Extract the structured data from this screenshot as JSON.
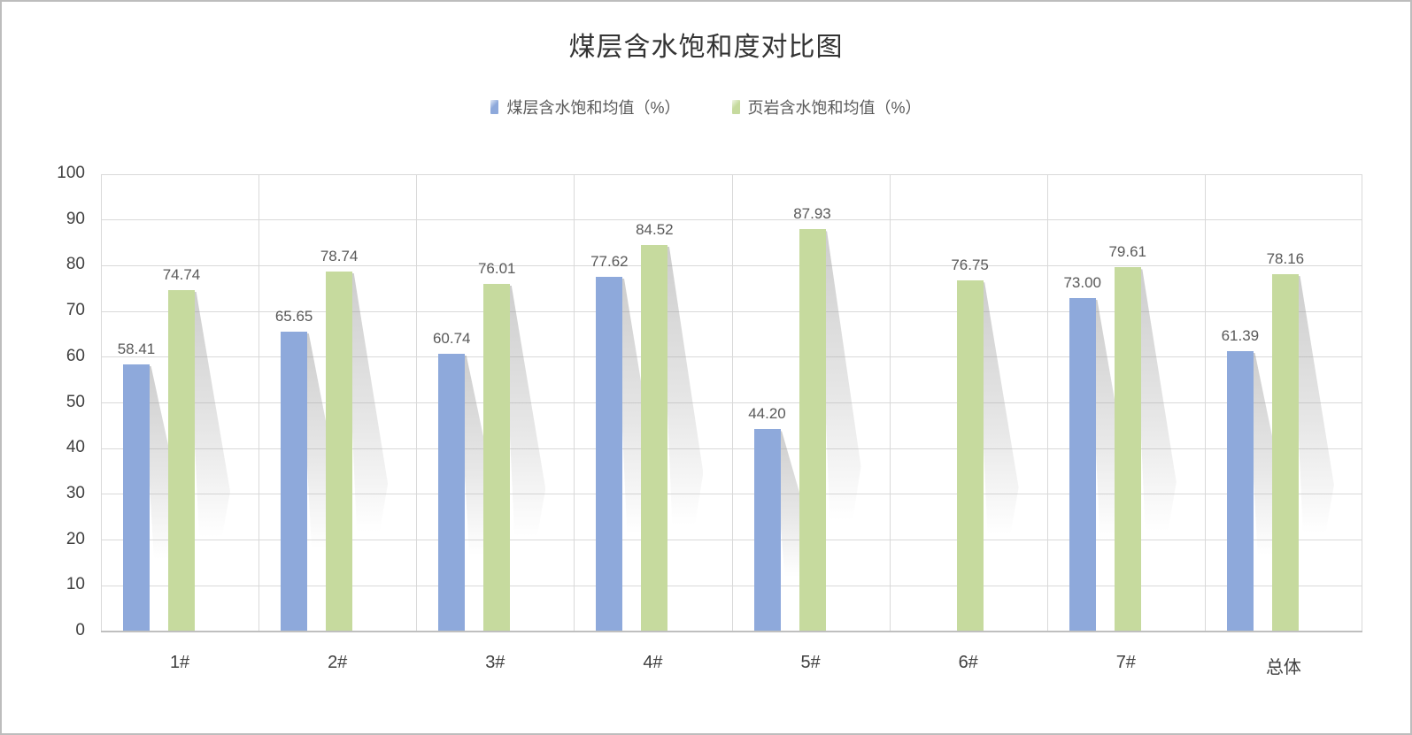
{
  "chart_data": {
    "type": "bar",
    "title": "煤层含水饱和度对比图",
    "categories": [
      "1#",
      "2#",
      "3#",
      "4#",
      "5#",
      "6#",
      "7#",
      "总体"
    ],
    "series": [
      {
        "name": "煤层含水饱和均值（%）",
        "color": "#8EA9DB",
        "values": [
          58.41,
          65.65,
          60.74,
          77.62,
          44.2,
          null,
          73.0,
          61.39
        ]
      },
      {
        "name": "页岩含水饱和均值（%）",
        "color": "#C6DA9E",
        "values": [
          74.74,
          78.74,
          76.01,
          84.52,
          87.93,
          76.75,
          79.61,
          78.16
        ]
      }
    ],
    "ylim": [
      0,
      100
    ],
    "yticks": [
      0,
      10,
      20,
      30,
      40,
      50,
      60,
      70,
      80,
      90,
      100
    ],
    "grid": true,
    "legend_position": "top",
    "data_labels": true,
    "label_decimals": 2
  },
  "colors": {
    "grid": "#d9d9d9",
    "axis_line": "#bfbfbf",
    "tick_label": "#404040",
    "data_label": "#595959",
    "title": "#333333",
    "frame_border": "#bdbdbd",
    "shadow_start": "rgba(145,145,145,0.45)",
    "shadow_mid": "rgba(175,175,175,0.30)",
    "shadow_end": "rgba(220,220,220,0)"
  }
}
